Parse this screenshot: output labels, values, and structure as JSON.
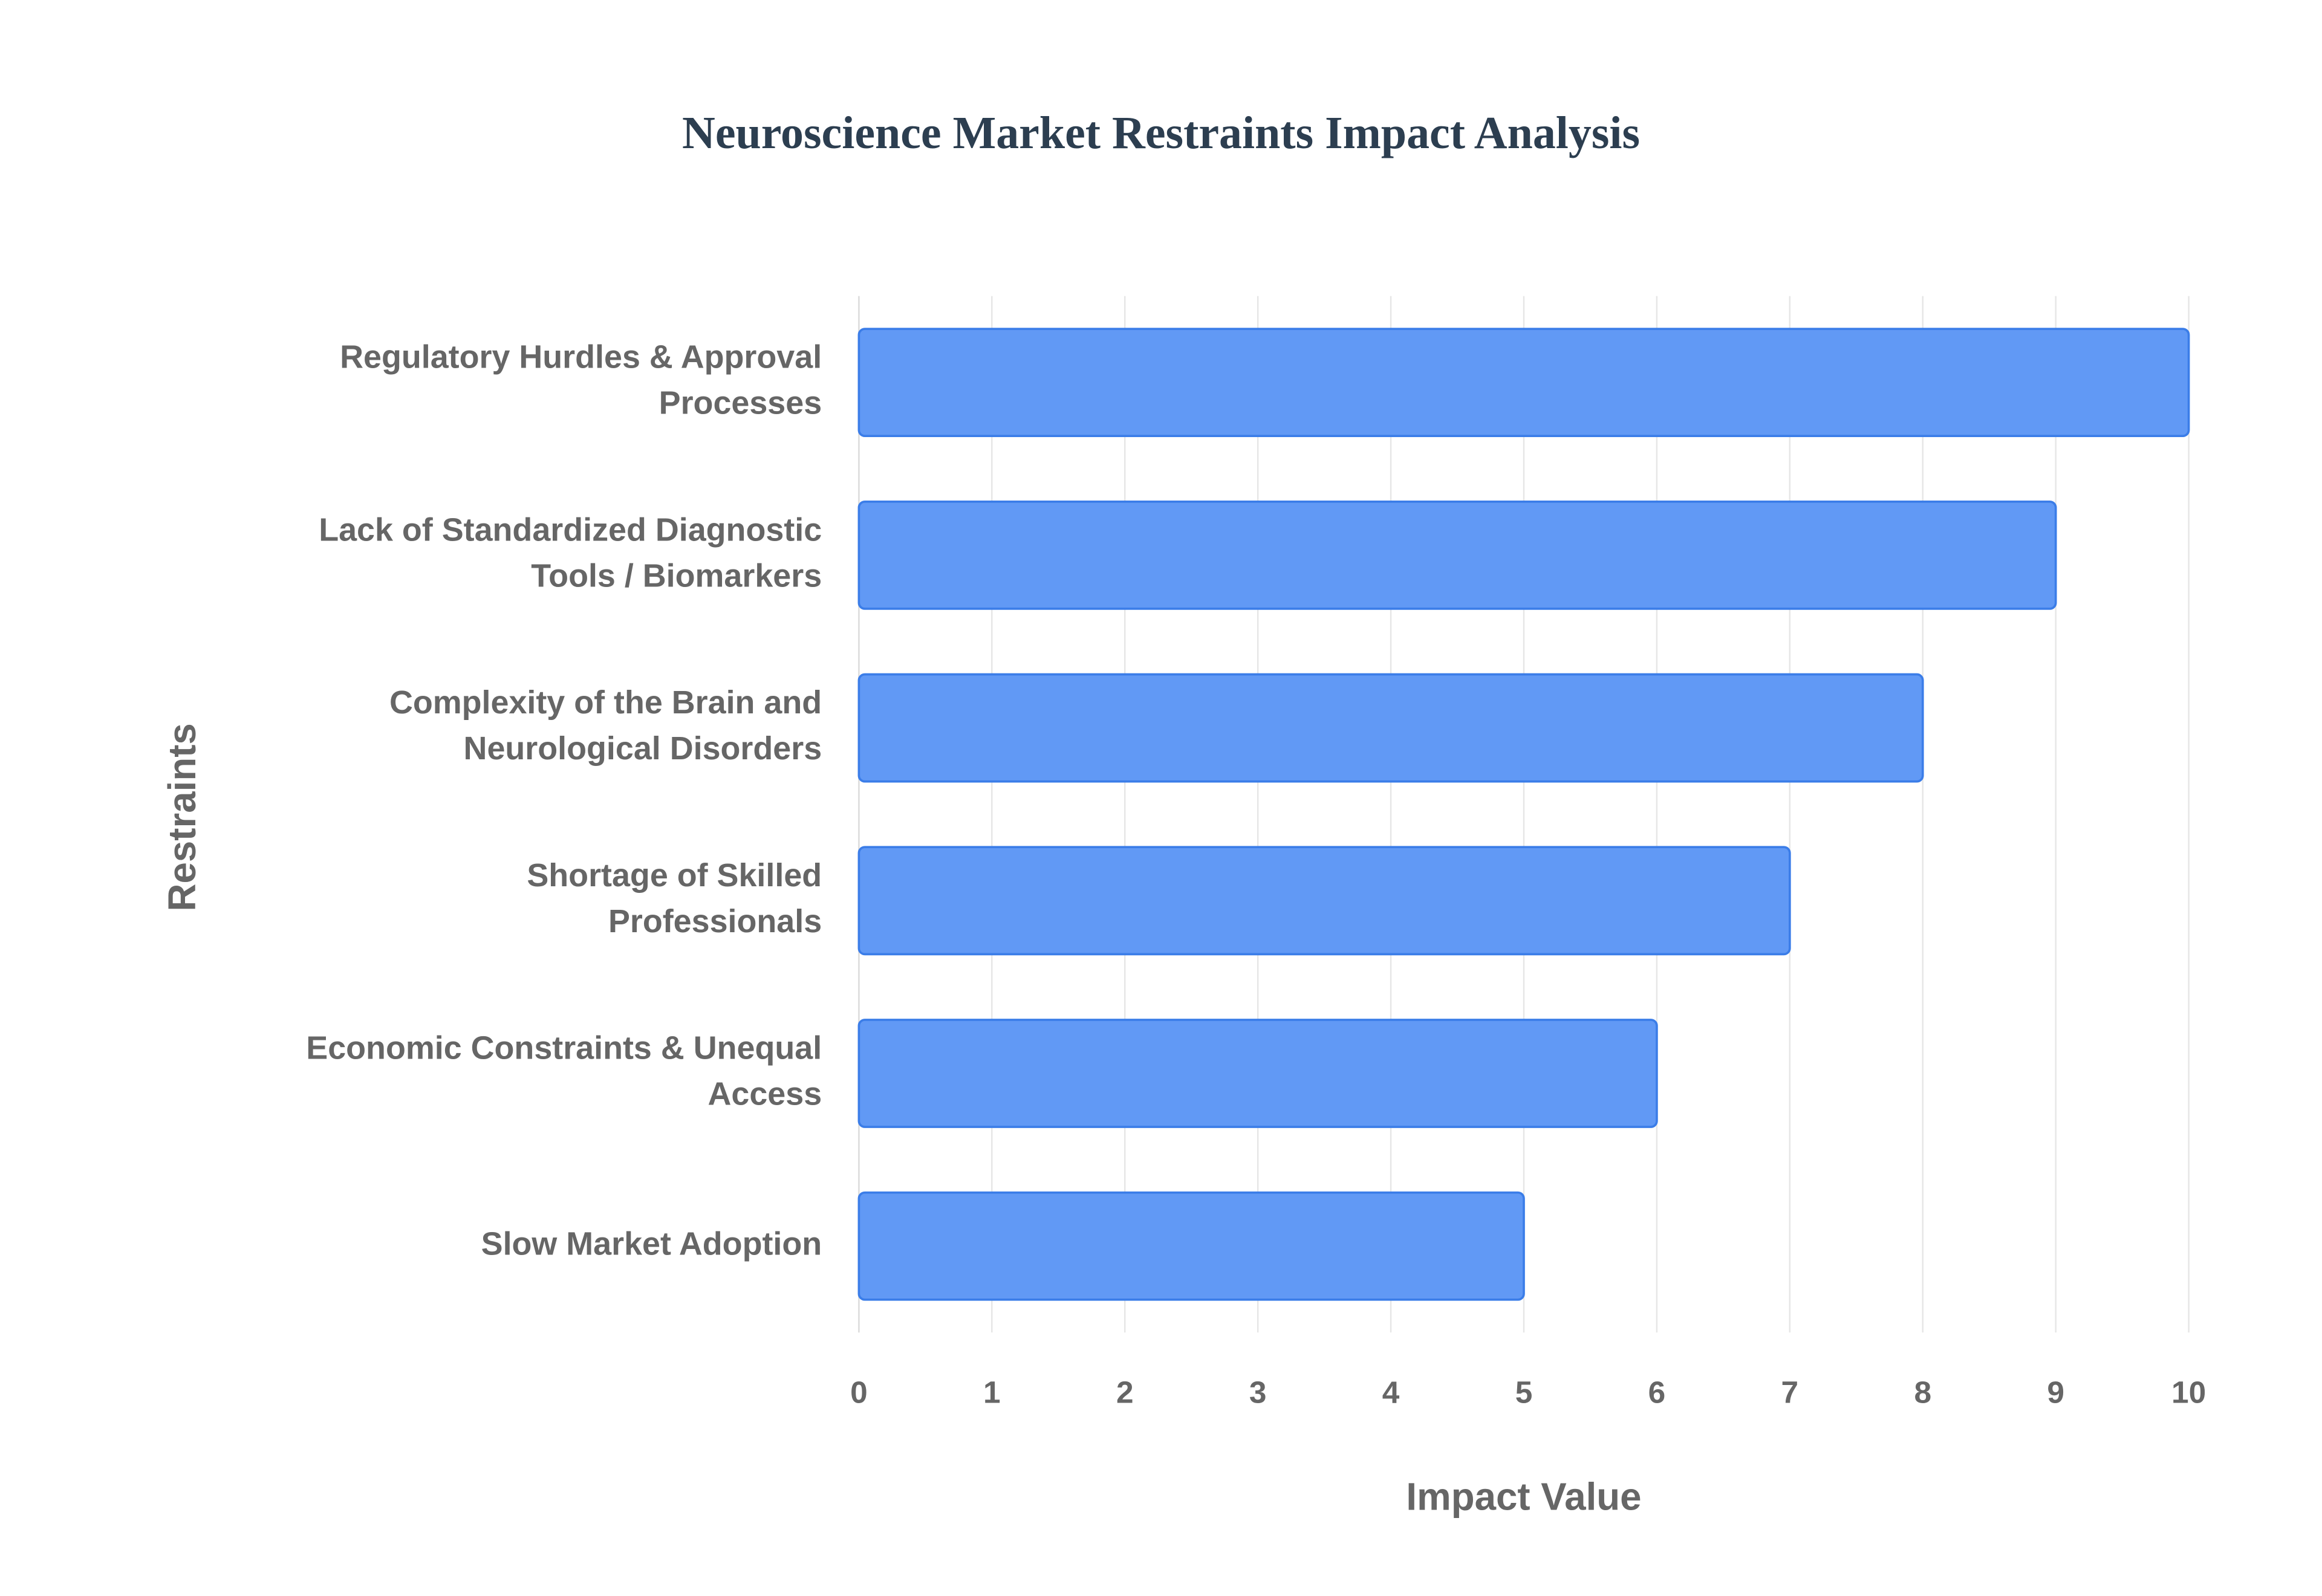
{
  "chart_data": {
    "type": "bar",
    "orientation": "horizontal",
    "title": "Neuroscience Market Restraints Impact Analysis",
    "x_label": "Impact Value",
    "y_label": "Restraints",
    "categories": [
      "Regulatory Hurdles & Approval Processes",
      "Lack of Standardized Diagnostic Tools / Biomarkers",
      "Complexity of the Brain and Neurological Disorders",
      "Shortage of Skilled Professionals",
      "Economic Constraints & Unequal Access",
      "Slow Market Adoption"
    ],
    "values": [
      10,
      9,
      8,
      7,
      6,
      5
    ],
    "color": "#6199f5",
    "xlim": [
      0,
      10
    ],
    "xticks": [
      0,
      1,
      2,
      3,
      4,
      5,
      6,
      7,
      8,
      9,
      10
    ],
    "grid": true
  }
}
